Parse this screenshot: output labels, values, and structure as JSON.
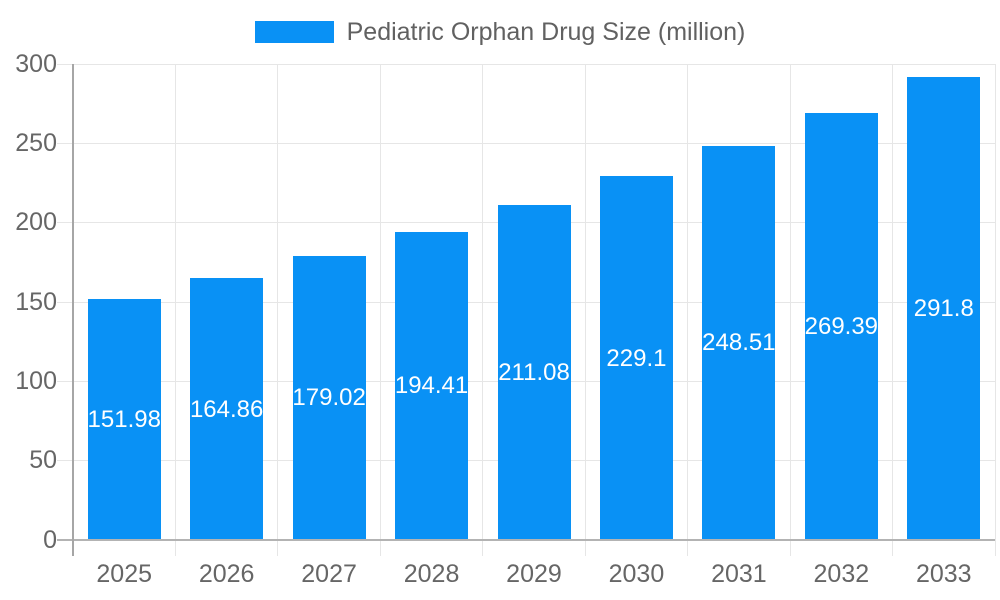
{
  "legend": {
    "label": "Pediatric Orphan Drug Size (million)"
  },
  "chart_data": {
    "type": "bar",
    "title": "Pediatric Orphan Drug Size (million)",
    "categories": [
      "2025",
      "2026",
      "2027",
      "2028",
      "2029",
      "2030",
      "2031",
      "2032",
      "2033"
    ],
    "values": [
      151.98,
      164.86,
      179.02,
      194.41,
      211.08,
      229.1,
      248.51,
      269.39,
      291.8
    ],
    "xlabel": "",
    "ylabel": "",
    "ylim": [
      0,
      300
    ],
    "yticks": [
      0,
      50,
      100,
      150,
      200,
      250,
      300
    ],
    "grid": true,
    "legend_position": "top",
    "value_labels": "inside-center",
    "colors": {
      "bar": "#0991f5",
      "value_label": "#ffffff",
      "axis_text": "#666666",
      "legend_text": "#616161",
      "grid": "#e6e6e6",
      "axis_line": "#a6a6a6",
      "baseline": "#b3b3b3"
    }
  }
}
